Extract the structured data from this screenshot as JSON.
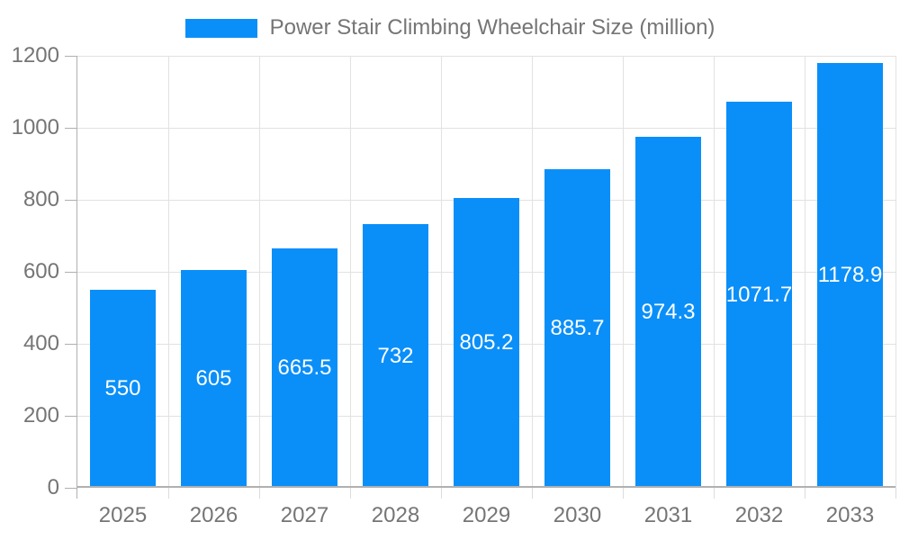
{
  "chart_data": {
    "type": "bar",
    "series_name": "Power Stair Climbing Wheelchair Size (million)",
    "categories": [
      "2025",
      "2026",
      "2027",
      "2028",
      "2029",
      "2030",
      "2031",
      "2032",
      "2033"
    ],
    "values": [
      550,
      605,
      665.5,
      732,
      805.2,
      885.7,
      974.3,
      1071.7,
      1178.9
    ],
    "y_ticks": [
      0,
      200,
      400,
      600,
      800,
      1000,
      1200
    ],
    "ylim": [
      0,
      1200
    ],
    "grid": true,
    "legend_position": "top",
    "colors": {
      "bar": "#0a8ff9",
      "bar_label": "#ffffff",
      "axis_text": "#757575",
      "legend_text": "#757575",
      "gridline": "#e2e2e2",
      "axis_line": "#b0b0b0",
      "boundary_tick": "#dcdcdc",
      "background": "#ffffff"
    }
  }
}
